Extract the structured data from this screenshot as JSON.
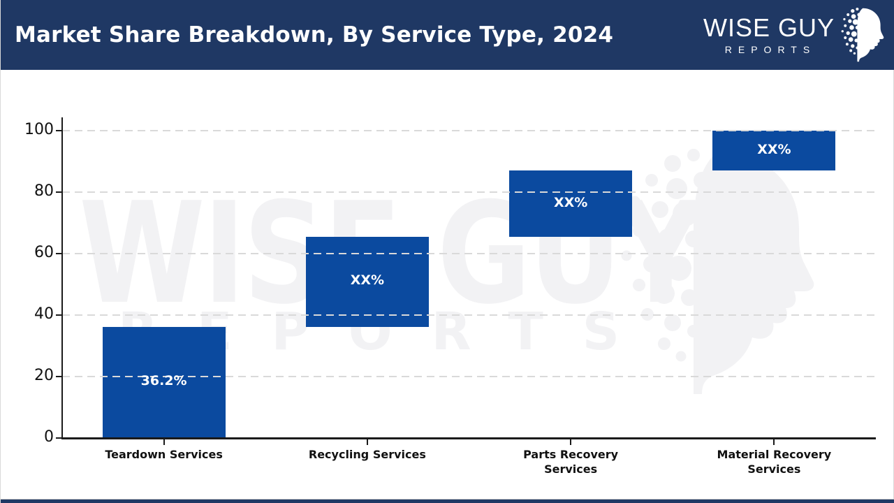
{
  "header": {
    "title": "Market Share Breakdown, By Service Type, 2024",
    "brand": {
      "name_top": "WISE GUY",
      "name_bottom": "REPORTS"
    }
  },
  "watermark": {
    "line1": "WISE GUY",
    "line2": "REPORTS"
  },
  "chart_data": {
    "type": "bar",
    "subtype": "floating-waterfall",
    "title": "Market Share Breakdown, By Service Type, 2024",
    "categories": [
      "Teardown Services",
      "Recycling Services",
      "Parts Recovery Services",
      "Material Recovery Services"
    ],
    "series": [
      {
        "name": "Market share (%)",
        "segments": [
          {
            "category": "Teardown Services",
            "start": 0,
            "end": 36.2,
            "label": "36.2%"
          },
          {
            "category": "Recycling Services",
            "start": 36.2,
            "end": 65.5,
            "label": "XX%"
          },
          {
            "category": "Parts Recovery Services",
            "start": 65.5,
            "end": 87,
            "label": "XX%"
          },
          {
            "category": "Material Recovery Services",
            "start": 87,
            "end": 100,
            "label": "XX%"
          }
        ]
      }
    ],
    "xlabel": "",
    "ylabel": "",
    "ylim": [
      0,
      100
    ],
    "yticks": [
      0,
      20,
      40,
      60,
      80,
      100
    ],
    "grid": "horizontal-dashed",
    "legend": "none",
    "bar_color": "#0b4a9f",
    "bar_label_color": "#ffffff",
    "axis_color": "#1a1a1a",
    "grid_color": "#d9d9d9"
  },
  "colors": {
    "header_bg": "#1f3864",
    "footer_bg": "#1f3864",
    "watermark": "#f2f2f4",
    "background": "#ffffff"
  }
}
